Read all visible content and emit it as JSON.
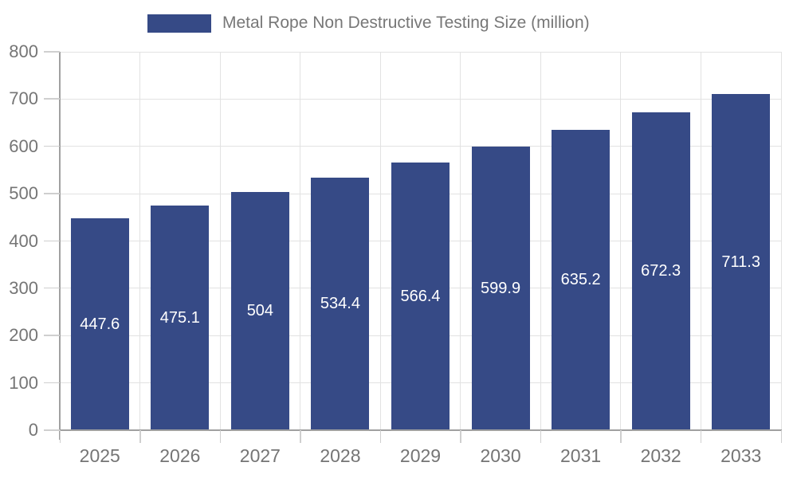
{
  "chart_data": {
    "type": "bar",
    "title": "Metal Rope Non Destructive Testing Size (million)",
    "categories": [
      "2025",
      "2026",
      "2027",
      "2028",
      "2029",
      "2030",
      "2031",
      "2032",
      "2033"
    ],
    "values": [
      447.6,
      475.1,
      504,
      534.4,
      566.4,
      599.9,
      635.2,
      672.3,
      711.3
    ],
    "xlabel": "",
    "ylabel": "",
    "ylim": [
      0,
      800
    ],
    "ytick_step": 100,
    "grid": true,
    "legend_position": "top",
    "colors": {
      "bar": "#364a86",
      "grid": "#e2e2e2",
      "axis": "#a0a0a0",
      "tick": "#cfcfcf",
      "tick_label": "#757575",
      "value_label": "#ffffff",
      "legend_text": "#777777"
    }
  }
}
